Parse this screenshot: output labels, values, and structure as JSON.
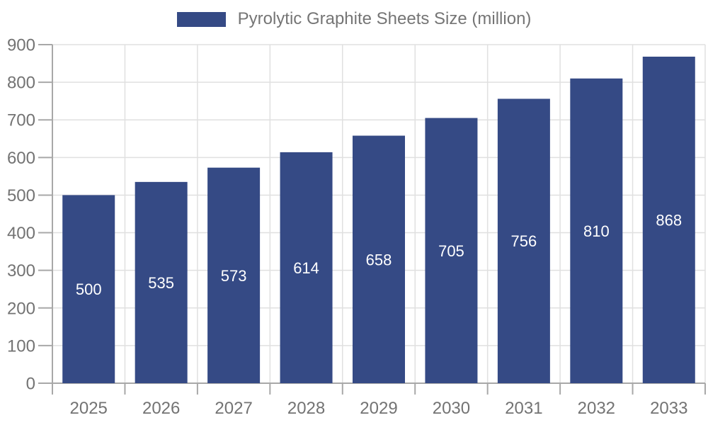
{
  "chart_data": {
    "type": "bar",
    "title": "",
    "legend": "Pyrolytic Graphite Sheets Size (million)",
    "categories": [
      "2025",
      "2026",
      "2027",
      "2028",
      "2029",
      "2030",
      "2031",
      "2032",
      "2033"
    ],
    "values": [
      500,
      535,
      573,
      614,
      658,
      705,
      756,
      810,
      868
    ],
    "xlabel": "",
    "ylabel": "",
    "ylim": [
      0,
      900
    ],
    "ytick_step": 100,
    "grid": true,
    "legend_position": "top",
    "colors": {
      "bar": "#354a85",
      "grid": "#e0e0e0",
      "axis": "#a8a8a8",
      "tick_label": "#737373",
      "bar_label": "#ffffff"
    }
  }
}
